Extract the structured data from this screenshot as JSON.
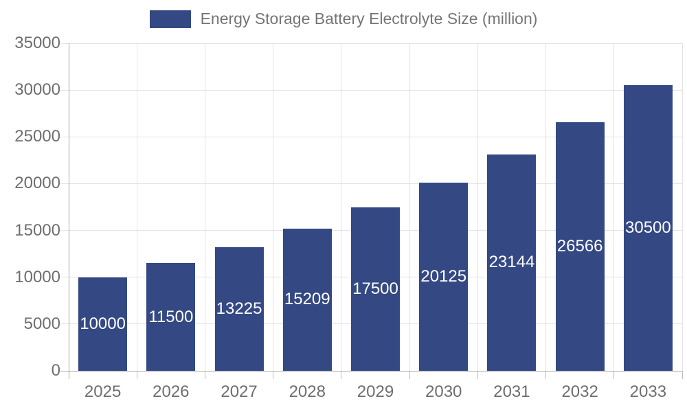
{
  "chart_data": {
    "type": "bar",
    "title": "Energy Storage Battery Electrolyte Size (million)",
    "legend": {
      "label": "Energy Storage Battery Electrolyte Size (million)",
      "position": "top"
    },
    "categories": [
      "2025",
      "2026",
      "2027",
      "2028",
      "2029",
      "2030",
      "2031",
      "2032",
      "2033"
    ],
    "series": [
      {
        "name": "Energy Storage Battery Electrolyte Size (million)",
        "values": [
          10000,
          11500,
          13225,
          15209,
          17500,
          20125,
          23144,
          26566,
          30500
        ]
      }
    ],
    "xlabel": "",
    "ylabel": "",
    "ylim": [
      0,
      35000
    ],
    "ytick_step": 5000,
    "ytick_labels": [
      "0",
      "5000",
      "10000",
      "15000",
      "20000",
      "25000",
      "30000",
      "35000"
    ],
    "grid": true,
    "value_labels_position": "inside-center",
    "colors": {
      "bar": "#344983",
      "value_label": "#ffffff",
      "axis_label": "#6e6e6e",
      "legend_text": "#757575",
      "gridline": "#e3e3e3",
      "axis_line": "#a6a6a6",
      "tick_mark": "#bdbdbd",
      "background": "#ffffff"
    }
  }
}
